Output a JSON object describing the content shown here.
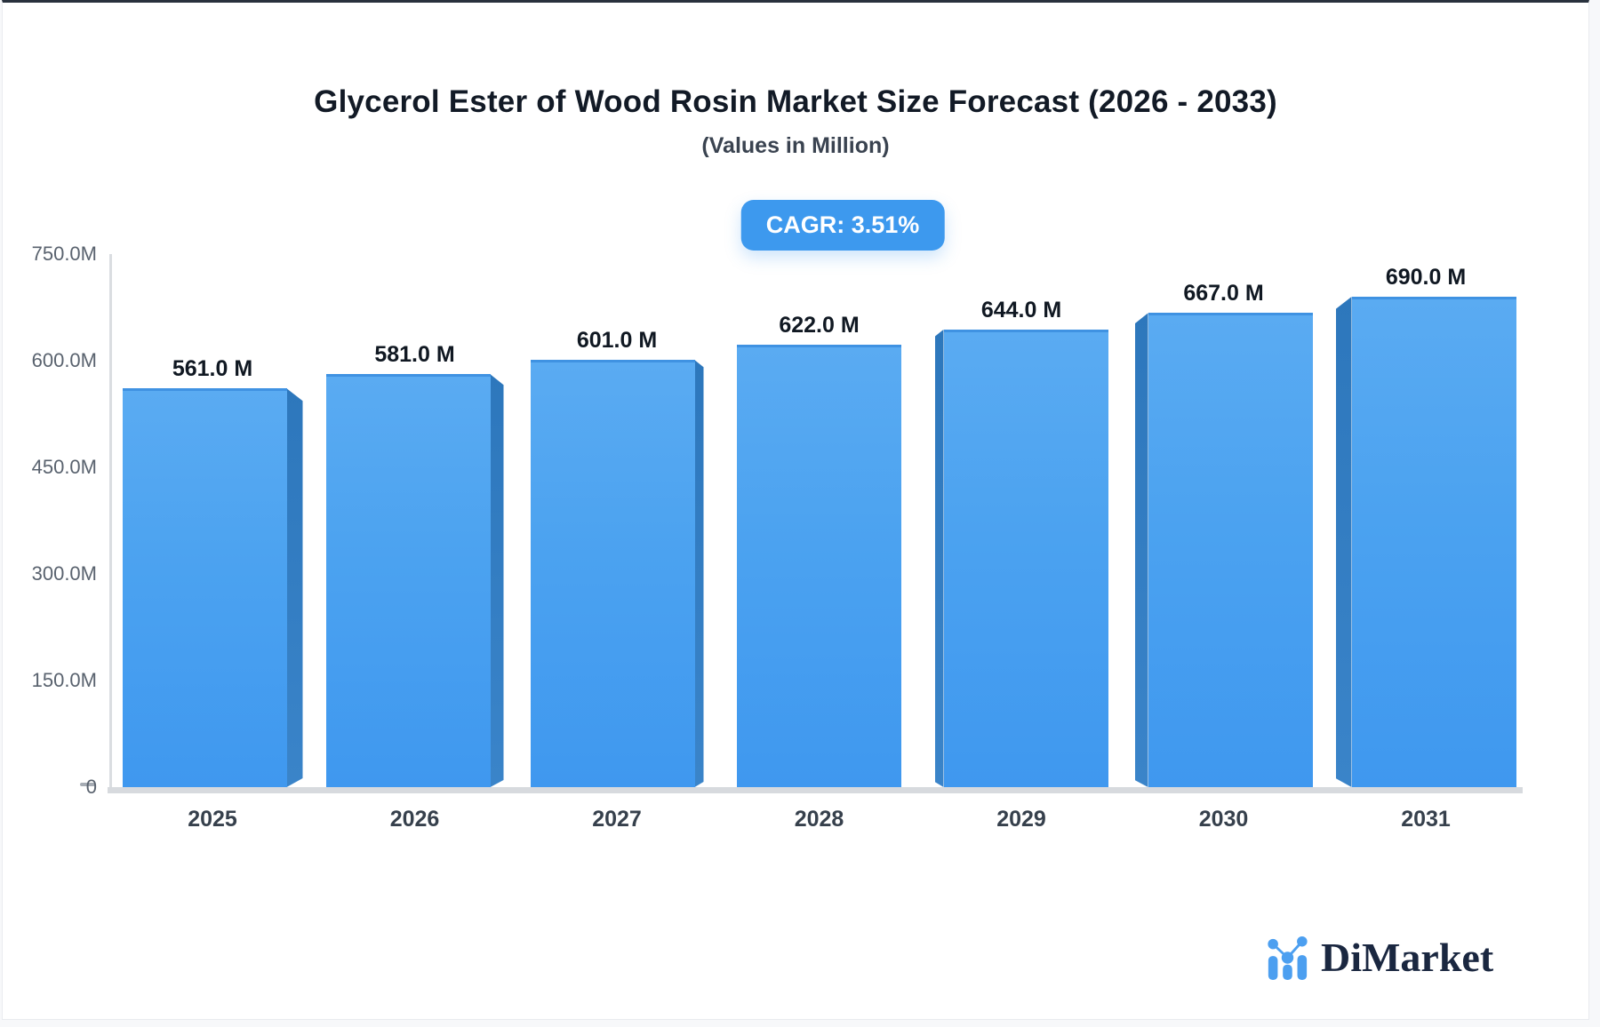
{
  "page": {
    "title": "Glycerol Ester of Wood Rosin Market Size Forecast (2026 - 2033)",
    "subtitle": "(Values in Million)",
    "cagr_label": "CAGR: 3.51%"
  },
  "colors": {
    "badge_blue": "#3D99EE",
    "bar_blue_top": "#5AABF2",
    "bar_blue_bottom": "#3F98EF",
    "bar_side_blue": "#2E7ABF",
    "axis_gray": "#D7DADE",
    "logo_blue": "#4C9FF0",
    "logo_navy": "#1A2740"
  },
  "chart_data": {
    "type": "bar",
    "title": "Glycerol Ester of Wood Rosin Market Size Forecast (2026 - 2033)",
    "subtitle": "(Values in Million)",
    "annotation": "CAGR: 3.51%",
    "categories": [
      "2025",
      "2026",
      "2027",
      "2028",
      "2029",
      "2030",
      "2031"
    ],
    "values": [
      561,
      581,
      601,
      622,
      644,
      667,
      690
    ],
    "value_labels": [
      "561.0 M",
      "581.0 M",
      "601.0 M",
      "622.0 M",
      "644.0 M",
      "667.0 M",
      "690.0 M"
    ],
    "unit": "Million",
    "xlabel": "",
    "ylabel": "",
    "ylim": [
      0,
      750
    ],
    "yticks": [
      {
        "value": 750,
        "label": "750.0M"
      },
      {
        "value": 600,
        "label": "600.0M"
      },
      {
        "value": 450,
        "label": "450.0M"
      },
      {
        "value": 300,
        "label": "300.0M"
      },
      {
        "value": 150,
        "label": "150.0M"
      },
      {
        "value": 0,
        "label": "0"
      }
    ],
    "grid": false,
    "legend": false,
    "style": "3d-perspective-bars"
  },
  "branding": {
    "logo_text": "DiMarket",
    "logo_icon": "bar-chart-with-trend-dots-icon"
  }
}
